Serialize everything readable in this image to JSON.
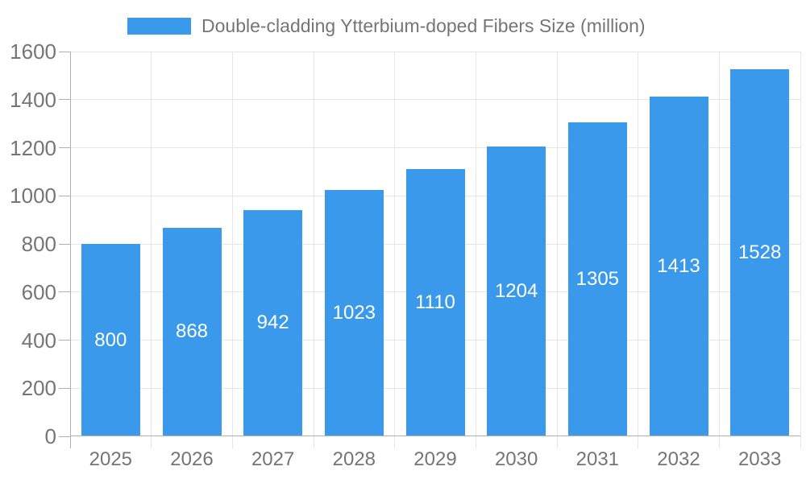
{
  "chart_data": {
    "type": "bar",
    "title": "Double-cladding Ytterbium-doped Fibers Size (million)",
    "categories": [
      "2025",
      "2026",
      "2027",
      "2028",
      "2029",
      "2030",
      "2031",
      "2032",
      "2033"
    ],
    "values": [
      800,
      868,
      942,
      1023,
      1110,
      1204,
      1305,
      1413,
      1528
    ],
    "series": [
      {
        "name": "Double-cladding Ytterbium-doped Fibers Size (million)",
        "values": [
          800,
          868,
          942,
          1023,
          1110,
          1204,
          1305,
          1413,
          1528
        ]
      }
    ],
    "xlabel": "",
    "ylabel": "",
    "ylim": [
      0,
      1600
    ],
    "yticks": [
      0,
      200,
      400,
      600,
      800,
      1000,
      1200,
      1400,
      1600
    ],
    "grid": true,
    "legend_position": "top",
    "value_labels": "inside-center",
    "colors": {
      "bar": "#3b99ec",
      "bar_value_text": "#ffffff",
      "axis_line": "#b0b0b0",
      "grid_line": "#e6e6e6",
      "tick_text": "#757575",
      "legend_text": "#757575",
      "background": "#ffffff"
    }
  }
}
